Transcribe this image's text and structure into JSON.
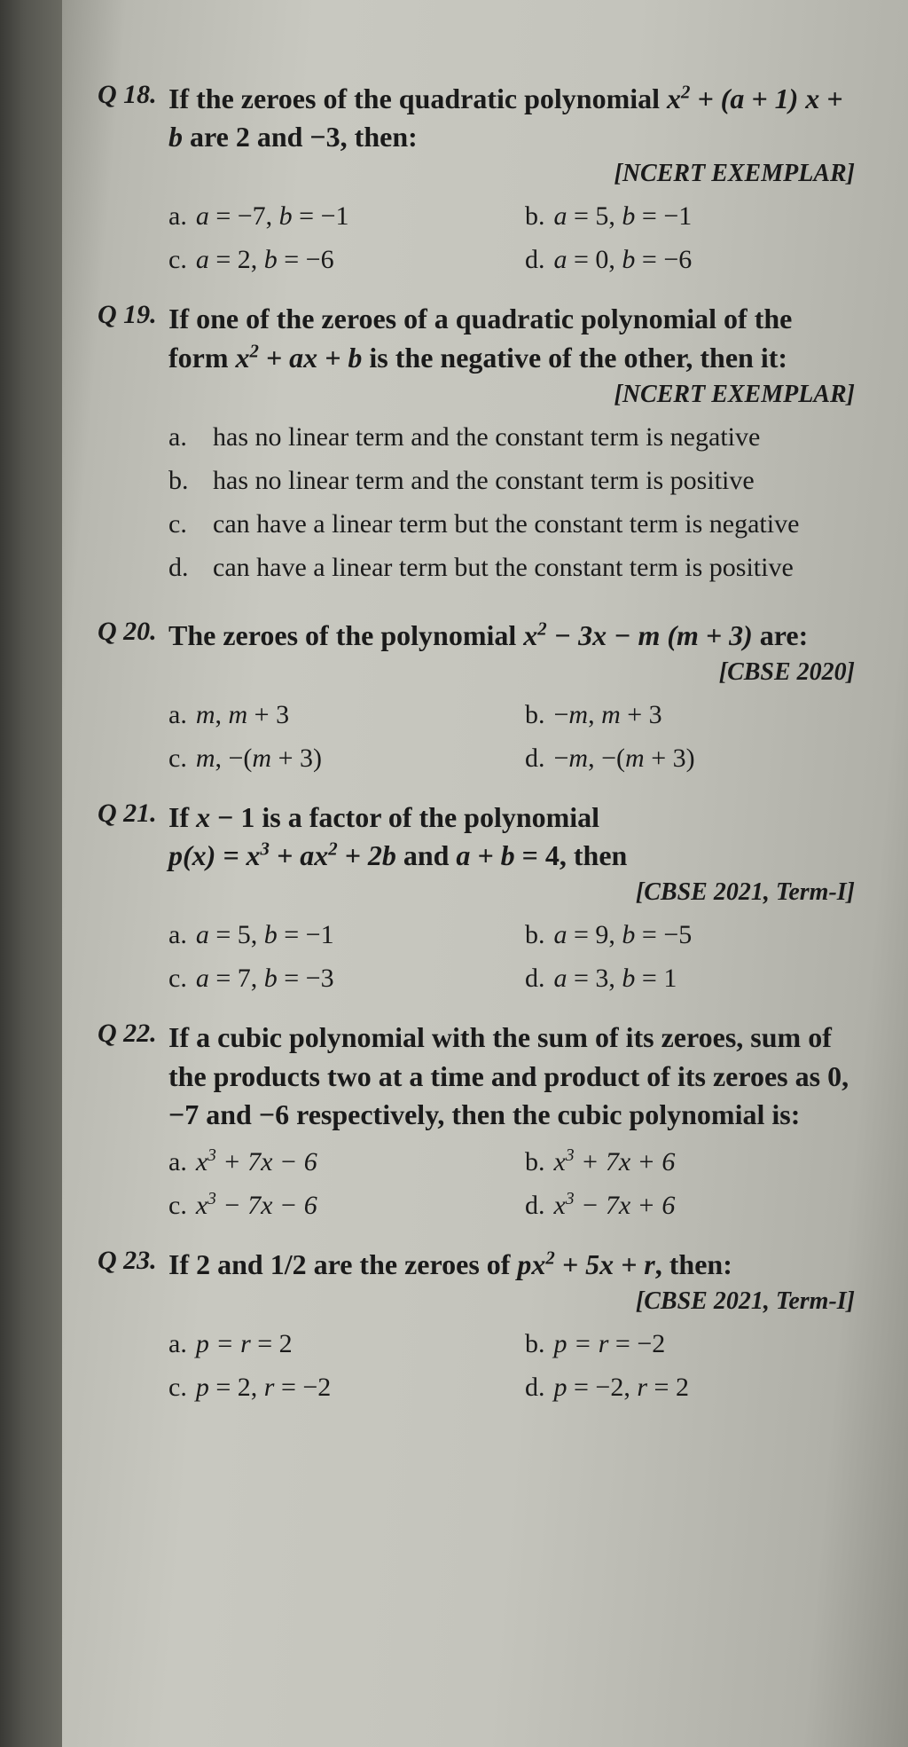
{
  "questions": [
    {
      "num": "Q 18.",
      "stem": "If the zeroes of the quadratic polynomial <span class='math'>x<sup>2</sup> + (a + 1) x + b</span> are 2 and −3, then:",
      "source": "[NCERT EXEMPLAR]",
      "layout": "2col",
      "options": [
        {
          "label": "a.",
          "text": "<span class='math'>a</span> = −7, <span class='math'>b</span> = −1"
        },
        {
          "label": "b.",
          "text": "<span class='math'>a</span> = 5, <span class='math'>b</span> = −1"
        },
        {
          "label": "c.",
          "text": "<span class='math'>a</span> = 2, <span class='math'>b</span> = −6"
        },
        {
          "label": "d.",
          "text": "<span class='math'>a</span> = 0, <span class='math'>b</span> = −6"
        }
      ]
    },
    {
      "num": "Q 19.",
      "stem": "If one of the zeroes of a quadratic polynomial of the form <span class='math'>x<sup>2</sup> + ax + b</span> is the negative of the other, then it:",
      "source": "[NCERT EXEMPLAR]",
      "layout": "1col",
      "options": [
        {
          "label": "a.",
          "text": "has no linear term and the constant term is negative"
        },
        {
          "label": "b.",
          "text": "has no linear term and the constant term is positive"
        },
        {
          "label": "c.",
          "text": "can have a linear term but the constant term is negative"
        },
        {
          "label": "d.",
          "text": "can have a linear term but the constant term is positive"
        }
      ]
    },
    {
      "num": "Q 20.",
      "stem": "The zeroes of the polynomial <span class='math'>x<sup>2</sup> − 3x − m (m + 3)</span> are:",
      "source": "[CBSE 2020]",
      "layout": "2col",
      "options": [
        {
          "label": "a.",
          "text": "<span class='math'>m</span>, <span class='math'>m</span> + 3"
        },
        {
          "label": "b.",
          "text": "−<span class='math'>m</span>, <span class='math'>m</span> + 3"
        },
        {
          "label": "c.",
          "text": "<span class='math'>m</span>, −(<span class='math'>m</span> + 3)"
        },
        {
          "label": "d.",
          "text": "−<span class='math'>m</span>, −(<span class='math'>m</span> + 3)"
        }
      ]
    },
    {
      "num": "Q 21.",
      "stem": "If <span class='math'>x</span> − 1 is a factor of the polynomial<br><span class='math'>p(x) = x<sup>3</sup> + ax<sup>2</sup> + 2b</span> and <span class='math'>a + b</span> = 4, then",
      "source": "[CBSE 2021, Term-I]",
      "layout": "2col",
      "options": [
        {
          "label": "a.",
          "text": "<span class='math'>a</span> = 5, <span class='math'>b</span> = −1"
        },
        {
          "label": "b.",
          "text": "<span class='math'>a</span> = 9, <span class='math'>b</span> = −5"
        },
        {
          "label": "c.",
          "text": "<span class='math'>a</span> = 7, <span class='math'>b</span> = −3"
        },
        {
          "label": "d.",
          "text": "<span class='math'>a</span> = 3, <span class='math'>b</span> = 1"
        }
      ]
    },
    {
      "num": "Q 22.",
      "stem": "If a cubic polynomial with the sum of its zeroes, sum of the products two at a time and product of its zeroes as 0, −7 and −6 respectively, then the cubic polynomial is:",
      "source": "",
      "layout": "2col",
      "options": [
        {
          "label": "a.",
          "text": "<span class='math'>x<sup>3</sup> + 7x − 6</span>"
        },
        {
          "label": "b.",
          "text": "<span class='math'>x<sup>3</sup> + 7x + 6</span>"
        },
        {
          "label": "c.",
          "text": "<span class='math'>x<sup>3</sup> − 7x − 6</span>"
        },
        {
          "label": "d.",
          "text": "<span class='math'>x<sup>3</sup> − 7x + 6</span>"
        }
      ]
    },
    {
      "num": "Q 23.",
      "stem": "If 2 and 1/2 are the zeroes of <span class='math'>px<sup>2</sup> + 5x + r</span>, then:",
      "source": "[CBSE 2021, Term-I]",
      "layout": "2col",
      "options": [
        {
          "label": "a.",
          "text": "<span class='math'>p = r</span> = 2"
        },
        {
          "label": "b.",
          "text": "<span class='math'>p = r</span> = −2"
        },
        {
          "label": "c.",
          "text": "<span class='math'>p</span> = 2, <span class='math'>r</span> = −2"
        },
        {
          "label": "d.",
          "text": "<span class='math'>p</span> = −2, <span class='math'>r</span> = 2"
        }
      ]
    }
  ],
  "style": {
    "page_bg_stops": [
      "#7a7a74",
      "#8e8e86",
      "#b8b8b0",
      "#c8c8c0",
      "#c4c4bc",
      "#b0b0a8",
      "#909088"
    ],
    "text_color": "#1a1a1a",
    "q_num_fontsize": 30,
    "stem_fontsize": 32,
    "option_fontsize": 30,
    "source_fontsize": 28,
    "font_family": "Georgia, 'Times New Roman', serif"
  }
}
